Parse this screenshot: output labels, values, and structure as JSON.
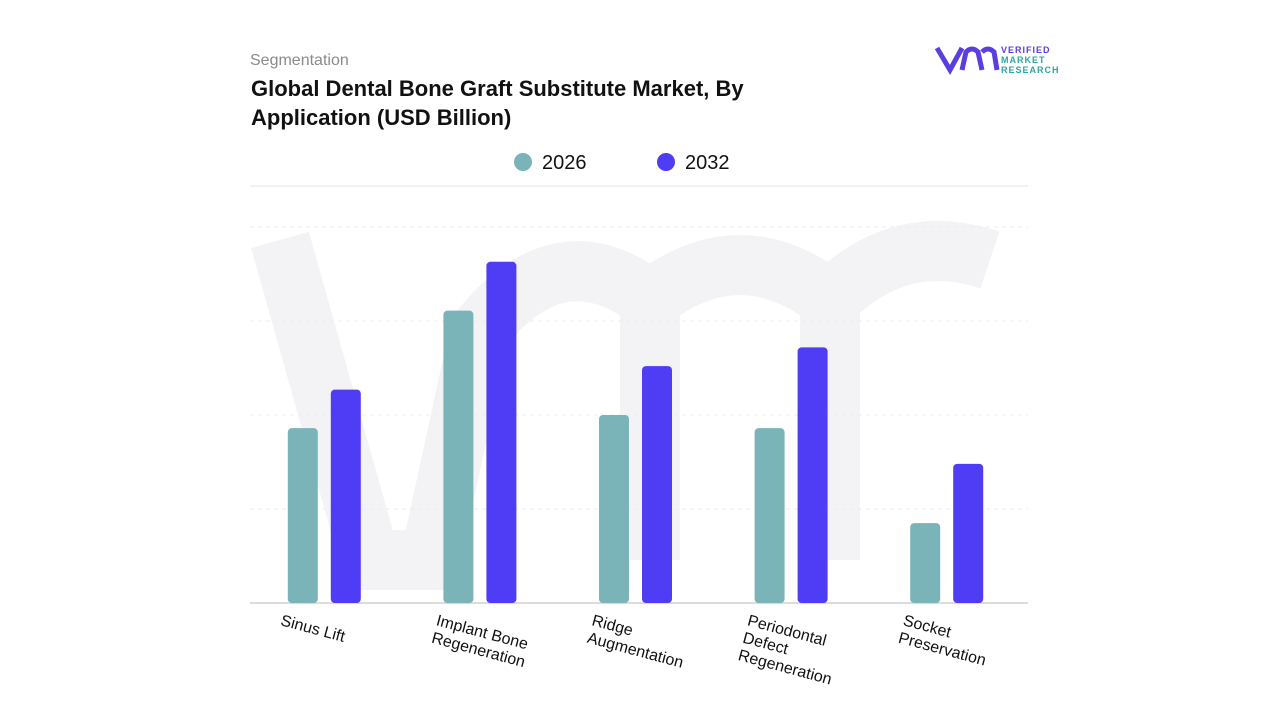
{
  "logo": {
    "line1": "VERIFIED",
    "line2": "MARKET",
    "line3": "RESEARCH"
  },
  "chart_data": {
    "type": "bar",
    "kicker": "Segmentation",
    "title": "Global Dental Bone Graft Substitute Market, By Application (USD Billion)",
    "categories": [
      "Sinus Lift",
      "Implant Bone Regeneration",
      "Ridge Augmentation",
      "Periodontal Defect Regeneration",
      "Socket Preservation"
    ],
    "series": [
      {
        "name": "2026",
        "color": "#7ab4b8",
        "values": [
          1.86,
          3.11,
          2.0,
          1.86,
          0.85
        ]
      },
      {
        "name": "2032",
        "color": "#4f3cf5",
        "values": [
          2.27,
          3.63,
          2.52,
          2.72,
          1.48
        ]
      }
    ],
    "ylim": [
      0,
      4
    ],
    "yticks": [
      0,
      1,
      2,
      3,
      4
    ],
    "grid": true
  }
}
